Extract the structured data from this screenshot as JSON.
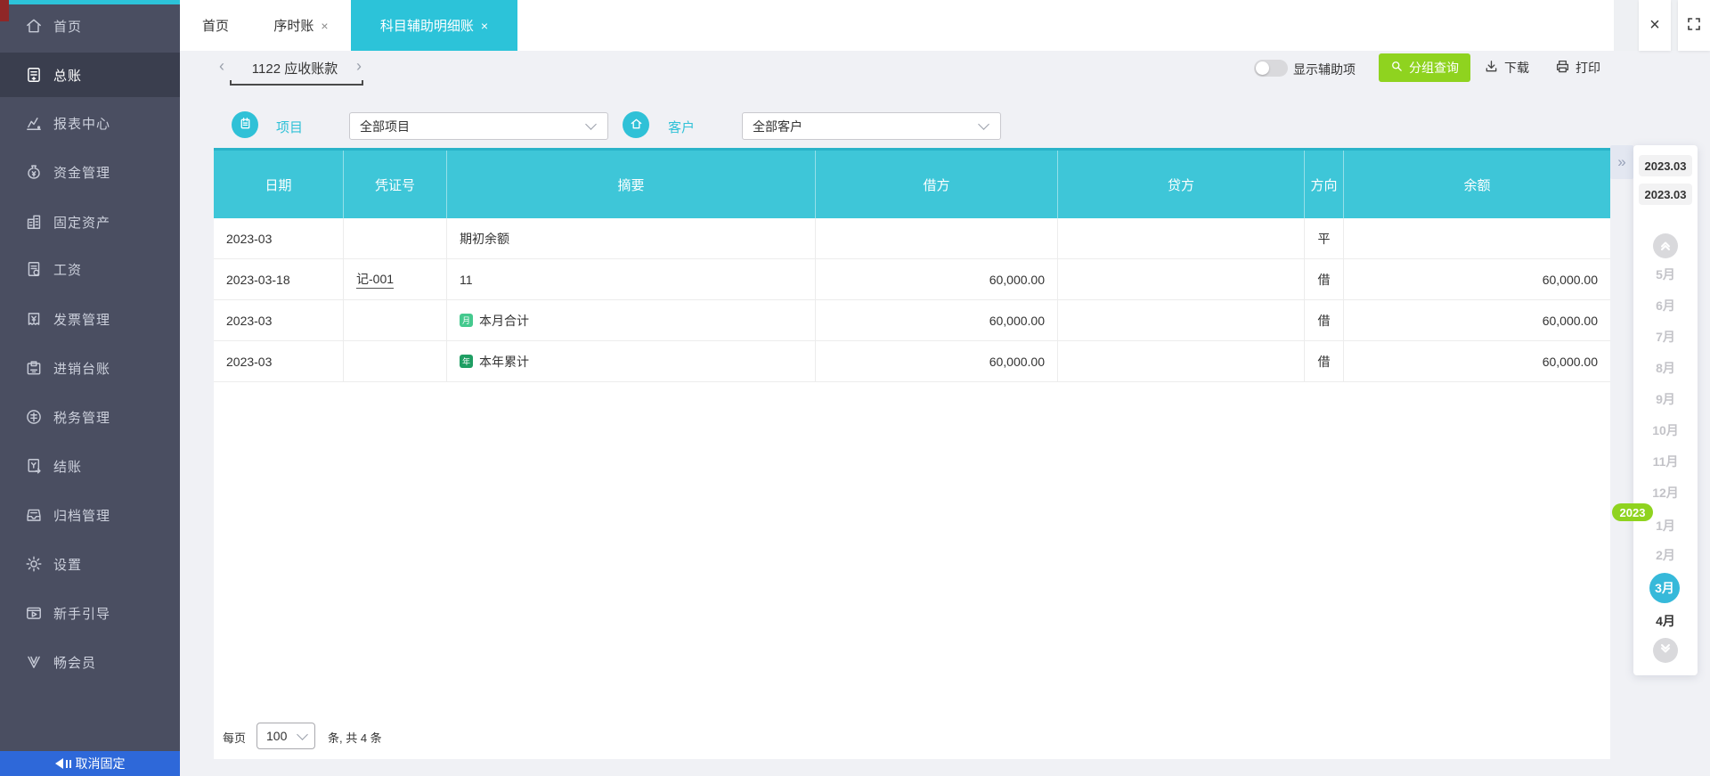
{
  "colors": {
    "teal_accent": "#2cc3d9",
    "table_header_teal": "#3ec6d8",
    "green_button": "#8fd31f",
    "sidebar_bg": "#4a4e61",
    "sidebar_selected_bg": "#3a3e4e",
    "unpin_bar_blue": "#2e68d9",
    "month_selected_teal": "#36b9da",
    "year_badge_green": "#8fd31f",
    "month_total_icon_green": "#44c98e",
    "year_total_icon_green": "#1f9e63"
  },
  "sidebar": {
    "items": [
      {
        "key": "home",
        "label": "首页",
        "icon": "home-icon",
        "selected": false
      },
      {
        "key": "general-ledger",
        "label": "总账",
        "icon": "ledger-icon",
        "selected": true
      },
      {
        "key": "report-center",
        "label": "报表中心",
        "icon": "report-icon",
        "selected": false
      },
      {
        "key": "funds",
        "label": "资金管理",
        "icon": "funds-icon",
        "selected": false
      },
      {
        "key": "fixed-assets",
        "label": "固定资产",
        "icon": "fixed-asset-icon",
        "selected": false
      },
      {
        "key": "salary",
        "label": "工资",
        "icon": "salary-icon",
        "selected": false
      },
      {
        "key": "invoice",
        "label": "发票管理",
        "icon": "invoice-icon",
        "selected": false
      },
      {
        "key": "inventory",
        "label": "进销台账",
        "icon": "inventory-icon",
        "selected": false
      },
      {
        "key": "tax",
        "label": "税务管理",
        "icon": "tax-icon",
        "selected": false
      },
      {
        "key": "closing",
        "label": "结账",
        "icon": "closing-icon",
        "selected": false
      },
      {
        "key": "archive",
        "label": "归档管理",
        "icon": "archive-icon",
        "selected": false
      },
      {
        "key": "settings",
        "label": "设置",
        "icon": "settings-icon",
        "selected": false
      },
      {
        "key": "guide",
        "label": "新手引导",
        "icon": "guide-icon",
        "selected": false
      },
      {
        "key": "member",
        "label": "畅会员",
        "icon": "member-icon",
        "selected": false
      }
    ],
    "unpin_label": "取消固定"
  },
  "tabs": {
    "close_glyph": "×",
    "items": [
      {
        "key": "home",
        "label": "首页",
        "closable": false,
        "active": false
      },
      {
        "key": "journal",
        "label": "序时账",
        "closable": true,
        "active": false
      },
      {
        "key": "subject-auxiliary-detail",
        "label": "科目辅助明细账",
        "closable": true,
        "active": true
      }
    ]
  },
  "window_controls": {
    "close_glyph": "×"
  },
  "toolbar": {
    "prev_glyph": "‹",
    "next_glyph": "›",
    "account_label": "1122 应收账款",
    "toggle_label": "显示辅助项",
    "group_query_label": "分组查询",
    "download_label": "下载",
    "print_label": "打印"
  },
  "filters": {
    "project": {
      "label": "项目",
      "value": "全部项目"
    },
    "customer": {
      "label": "客户",
      "value": "全部客户"
    }
  },
  "table": {
    "columns": [
      "日期",
      "凭证号",
      "摘要",
      "借方",
      "贷方",
      "方向",
      "余额"
    ],
    "rows": [
      {
        "date": "2023-03",
        "voucher": "",
        "summary": "期初余额",
        "summary_icon": "",
        "summary_icon_char": "",
        "debit": "",
        "credit": "",
        "direction": "平",
        "balance": ""
      },
      {
        "date": "2023-03-18",
        "voucher": "记-001",
        "summary": "11",
        "summary_icon": "",
        "summary_icon_char": "",
        "debit": "60,000.00",
        "credit": "",
        "direction": "借",
        "balance": "60,000.00"
      },
      {
        "date": "2023-03",
        "voucher": "",
        "summary": "本月合计",
        "summary_icon": "month-total-icon",
        "summary_icon_char": "月",
        "debit": "60,000.00",
        "credit": "",
        "direction": "借",
        "balance": "60,000.00"
      },
      {
        "date": "2023-03",
        "voucher": "",
        "summary": "本年累计",
        "summary_icon": "year-total-icon",
        "summary_icon_char": "年",
        "debit": "60,000.00",
        "credit": "",
        "direction": "借",
        "balance": "60,000.00"
      }
    ]
  },
  "pagination": {
    "per_page_label": "每页",
    "per_page_value": "100",
    "total_label": "条, 共 4 条"
  },
  "period_panel": {
    "expander_glyph": "»",
    "from": "2023.03",
    "to": "2023.03",
    "year_badge": "2023",
    "months": [
      {
        "label": "5月",
        "state": "disabled"
      },
      {
        "label": "6月",
        "state": "disabled"
      },
      {
        "label": "7月",
        "state": "disabled"
      },
      {
        "label": "8月",
        "state": "disabled"
      },
      {
        "label": "9月",
        "state": "disabled"
      },
      {
        "label": "10月",
        "state": "disabled"
      },
      {
        "label": "11月",
        "state": "disabled"
      },
      {
        "label": "12月",
        "state": "disabled"
      },
      {
        "label": "1月",
        "state": "disabled"
      },
      {
        "label": "2月",
        "state": "disabled"
      },
      {
        "label": "3月",
        "state": "selected"
      },
      {
        "label": "4月",
        "state": "enabled"
      }
    ]
  }
}
